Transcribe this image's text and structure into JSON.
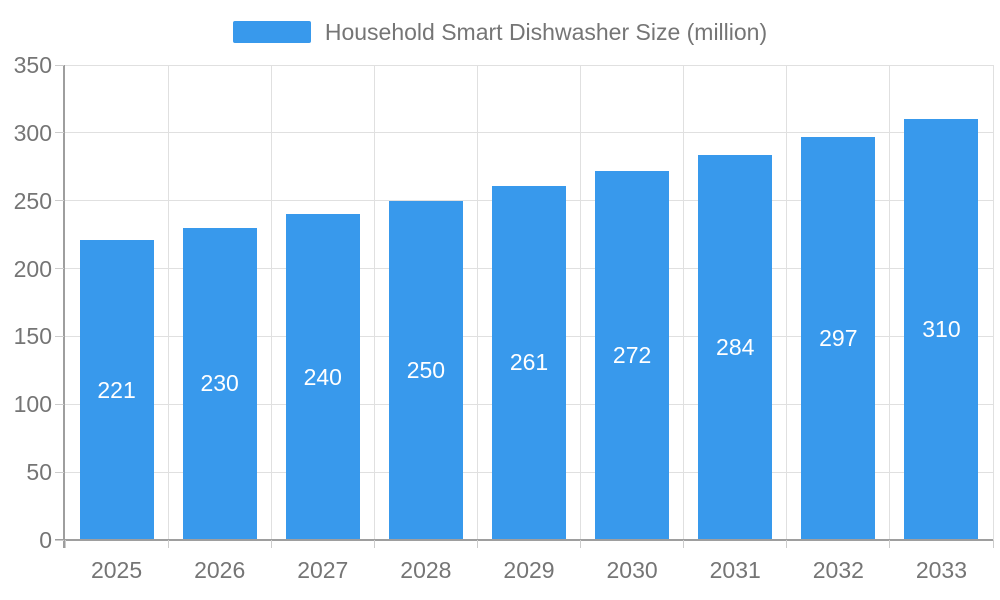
{
  "legend": {
    "label": "Household Smart Dishwasher Size (million)"
  },
  "chart_data": {
    "type": "bar",
    "title": "Household Smart Dishwasher Size (million)",
    "categories": [
      "2025",
      "2026",
      "2027",
      "2028",
      "2029",
      "2030",
      "2031",
      "2032",
      "2033"
    ],
    "values": [
      221,
      230,
      240,
      250,
      261,
      272,
      284,
      297,
      310
    ],
    "xlabel": "",
    "ylabel": "",
    "ylim": [
      0,
      350
    ],
    "yticks": [
      0,
      50,
      100,
      150,
      200,
      250,
      300,
      350
    ],
    "grid": true,
    "legend_position": "top-center",
    "value_label_position": "inside-center",
    "colors": {
      "bar": "#3899EC",
      "value_label": "#FFFFFF",
      "axis_line": "#9E9E9E",
      "grid_line": "#E0E0E0",
      "tick_mark": "#CCCCCC",
      "axis_text": "#757575",
      "legend_text": "#757575",
      "background": "#FFFFFF"
    }
  }
}
